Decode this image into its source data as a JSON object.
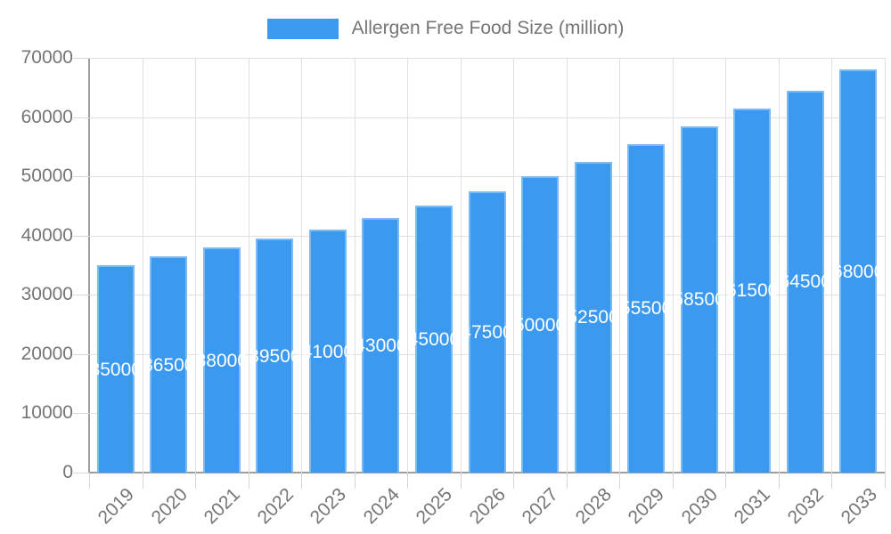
{
  "legend": {
    "label": "Allergen Free Food Size (million)"
  },
  "chart_data": {
    "type": "bar",
    "title": "",
    "xlabel": "",
    "ylabel": "",
    "categories": [
      "2019",
      "2020",
      "2021",
      "2022",
      "2023",
      "2024",
      "2025",
      "2026",
      "2027",
      "2028",
      "2029",
      "2030",
      "2031",
      "2032",
      "2033"
    ],
    "series": [
      {
        "name": "Allergen Free Food Size (million)",
        "values": [
          35000,
          36500,
          38000,
          39500,
          41000,
          43000,
          45000,
          47500,
          50000,
          52500,
          55500,
          58500,
          61500,
          64500,
          68000
        ]
      }
    ],
    "ylim": [
      0,
      70000
    ],
    "y_ticks": [
      0,
      10000,
      20000,
      30000,
      40000,
      50000,
      60000,
      70000
    ],
    "grid": true,
    "legend_position": "top-center",
    "value_labels_position": "inside-center-clipped"
  },
  "colors": {
    "bar": "#3b9af0",
    "axis": "#9e9e9e",
    "grid": "#e0e0e0",
    "tick": "#d6d6d6",
    "text": "#757575",
    "bar_label": "#ffffff",
    "background": "#ffffff"
  }
}
